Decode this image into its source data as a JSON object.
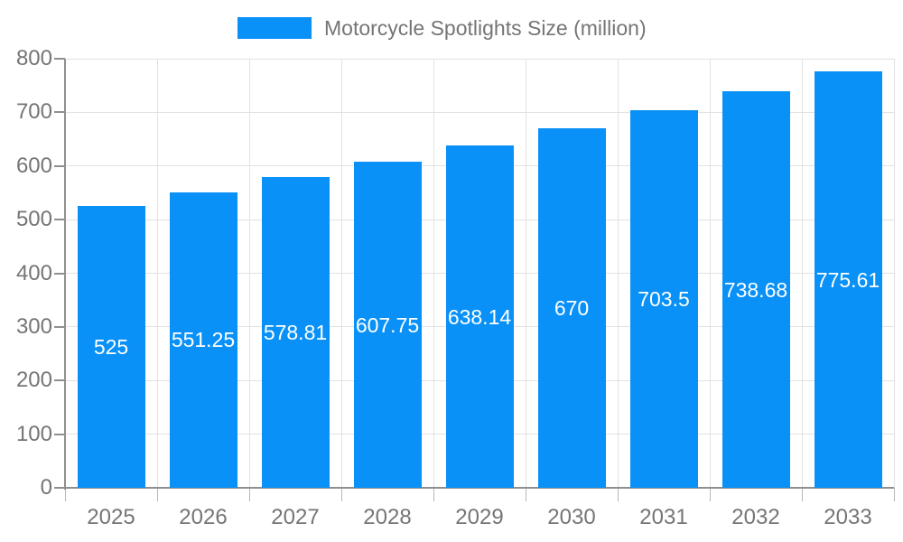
{
  "legend": {
    "label": "Motorcycle Spotlights Size (million)",
    "swatch_color": "#0991f8"
  },
  "chart_data": {
    "type": "bar",
    "title": "Motorcycle Spotlights Size (million)",
    "categories": [
      "2025",
      "2026",
      "2027",
      "2028",
      "2029",
      "2030",
      "2031",
      "2032",
      "2033"
    ],
    "series": [
      {
        "name": "Motorcycle Spotlights Size (million)",
        "values": [
          525,
          551.25,
          578.81,
          607.75,
          638.14,
          670,
          703.5,
          738.68,
          775.61
        ],
        "value_labels": [
          "525",
          "551.25",
          "578.81",
          "607.75",
          "638.14",
          "670",
          "703.5",
          "738.68",
          "775.61"
        ]
      }
    ],
    "xlabel": "",
    "ylabel": "",
    "ylim": [
      0,
      800
    ],
    "ytick_interval": 100,
    "ytick_labels": [
      "0",
      "100",
      "200",
      "300",
      "400",
      "500",
      "600",
      "700",
      "800"
    ],
    "grid": true,
    "legend_position": "top",
    "bar_color": "#0991f8",
    "value_label_color": "#ffffff",
    "axis_text_color": "#757575"
  }
}
